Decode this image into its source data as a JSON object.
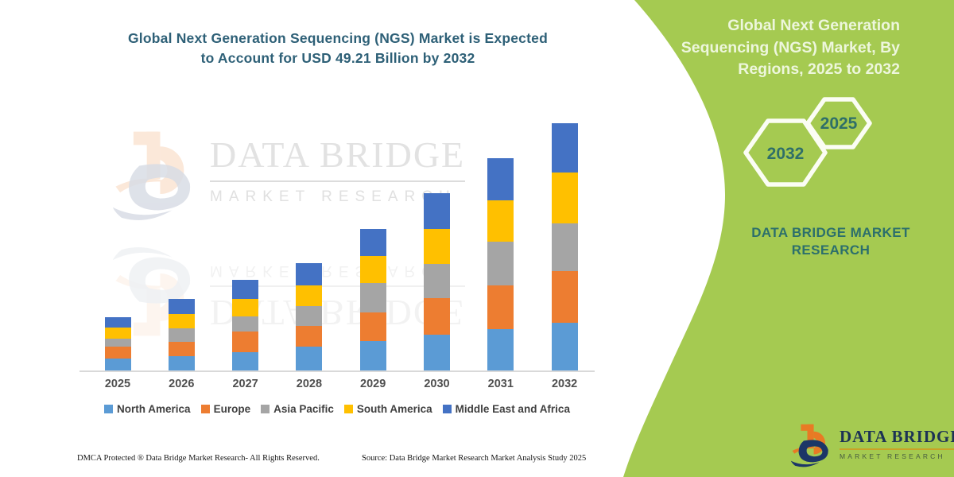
{
  "left_panel": {
    "title_lines": [
      "Global Next Generation Sequencing (NGS) Market is Expected",
      "to Account for USD 49.21 Billion by 2032"
    ],
    "watermark": {
      "brand": "DATA BRIDGE",
      "sub": "MARKET RESEARCH"
    },
    "footer": {
      "dmca": "DMCA Protected ® Data Bridge Market Research-  All Rights Reserved.",
      "source": "Source: Data Bridge Market Research  Market Analysis Study 2025"
    }
  },
  "right_panel": {
    "title_lines": [
      "Global Next Generation",
      "Sequencing (NGS) Market, By",
      "Regions, 2025 to 2032"
    ],
    "hexagons": [
      {
        "label": "2032"
      },
      {
        "label": "2025"
      }
    ],
    "brand_text": "DATA BRIDGE MARKET RESEARCH",
    "logo": {
      "brand": "DATA BRIDGE",
      "sub": "MARKET RESEARCH"
    },
    "background_color": "#A5CA51",
    "text_color": "#2C6F6C"
  },
  "chart_data": {
    "type": "bar",
    "stacked": true,
    "title": "Global Next Generation Sequencing (NGS) Market is Expected to Account for USD 49.21 Billion by 2032",
    "unit": "USD Billion",
    "estimated_from_pixels": true,
    "categories": [
      "2025",
      "2026",
      "2027",
      "2028",
      "2029",
      "2030",
      "2031",
      "2032"
    ],
    "series": [
      {
        "name": "North America",
        "color": "#5B9BD5",
        "values": [
          2.4,
          2.8,
          3.6,
          4.7,
          5.8,
          7.1,
          8.2,
          9.5
        ]
      },
      {
        "name": "Europe",
        "color": "#ED7D31",
        "values": [
          2.3,
          2.9,
          4.1,
          4.2,
          5.8,
          7.3,
          8.7,
          10.3
        ]
      },
      {
        "name": "Asia Pacific",
        "color": "#A5A5A5",
        "values": [
          1.7,
          2.7,
          3.1,
          3.9,
          5.8,
          6.8,
          8.7,
          9.4
        ]
      },
      {
        "name": "South America",
        "color": "#FFC000",
        "values": [
          2.1,
          2.8,
          3.5,
          4.2,
          5.4,
          7.0,
          8.3,
          10.2
        ]
      },
      {
        "name": "Middle East and Africa",
        "color": "#4472C4",
        "values": [
          2.1,
          3.0,
          3.7,
          4.4,
          5.4,
          7.1,
          8.3,
          9.81
        ]
      }
    ],
    "totals": [
      10.6,
      14.2,
      18.0,
      21.4,
      28.2,
      35.3,
      42.2,
      49.21
    ],
    "ylim": [
      0,
      50
    ],
    "grid": false,
    "y_axis_visible": false,
    "legend_position": "bottom",
    "axis_line_color": "#d9d9d9"
  }
}
